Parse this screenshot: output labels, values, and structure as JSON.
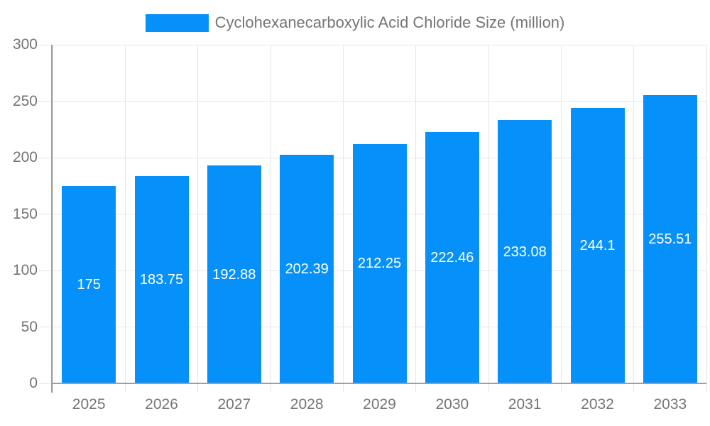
{
  "chart_data": {
    "type": "bar",
    "title": "Cyclohexanecarboxylic Acid Chloride Size (million)",
    "categories": [
      "2025",
      "2026",
      "2027",
      "2028",
      "2029",
      "2030",
      "2031",
      "2032",
      "2033"
    ],
    "values": [
      175,
      183.75,
      192.88,
      202.39,
      212.25,
      222.46,
      233.08,
      244.1,
      255.51
    ],
    "value_labels": [
      "175",
      "183.75",
      "192.88",
      "202.39",
      "212.25",
      "222.46",
      "233.08",
      "244.1",
      "255.51"
    ],
    "xlabel": "",
    "ylabel": "",
    "ylim": [
      0,
      300
    ],
    "yticks": [
      0,
      50,
      100,
      150,
      200,
      250,
      300
    ],
    "grid": true,
    "legend_position": "top",
    "colors": {
      "bar": "#0691fa",
      "bar_label": "#ffffff",
      "axis_text": "#757575",
      "grid": "#e6e6e6",
      "axis_line": "#9e9e9e",
      "background": "#ffffff"
    }
  }
}
